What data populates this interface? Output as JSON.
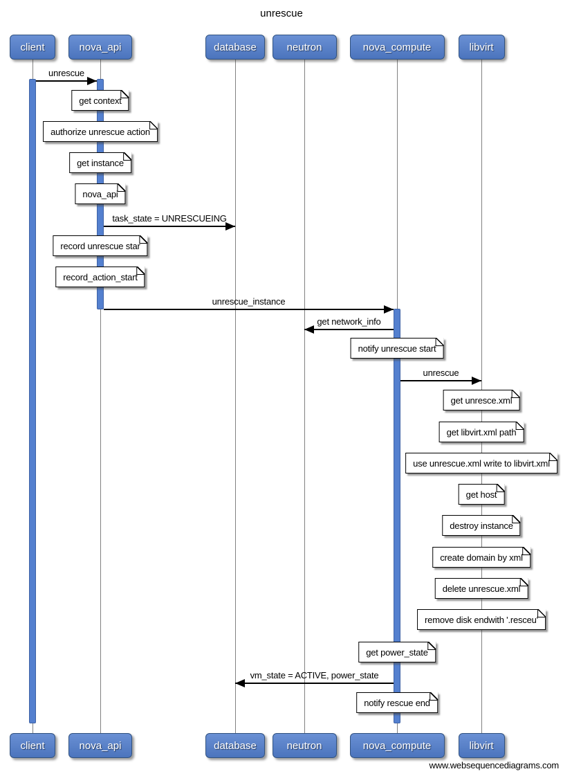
{
  "title": "unrescue",
  "watermark": "www.websequencediagrams.com",
  "actors": [
    {
      "id": "client",
      "label": "client"
    },
    {
      "id": "nova_api",
      "label": "nova_api"
    },
    {
      "id": "database",
      "label": "database"
    },
    {
      "id": "neutron",
      "label": "neutron"
    },
    {
      "id": "nova_compute",
      "label": "nova_compute"
    },
    {
      "id": "libvirt",
      "label": "libvirt"
    }
  ],
  "messages": [
    {
      "from": "client",
      "to": "nova_api",
      "label": "unrescue"
    },
    {
      "from": "nova_api",
      "to": "database",
      "label": "task_state = UNRESCUEING"
    },
    {
      "from": "nova_api",
      "to": "nova_compute",
      "label": "unrescue_instance"
    },
    {
      "from": "nova_compute",
      "to": "neutron",
      "label": "get network_info"
    },
    {
      "from": "nova_compute",
      "to": "libvirt",
      "label": "unrescue"
    },
    {
      "from": "nova_compute",
      "to": "database",
      "label": "vm_state = ACTIVE, power_state"
    }
  ],
  "notes": [
    {
      "over": "nova_api",
      "label": "get context"
    },
    {
      "over": "nova_api",
      "label": "authorize unrescue action"
    },
    {
      "over": "nova_api",
      "label": "get instance"
    },
    {
      "over": "nova_api",
      "label": "nova_api"
    },
    {
      "over": "nova_api",
      "label": "record unrescue star"
    },
    {
      "over": "nova_api",
      "label": "record_action_start"
    },
    {
      "over": "nova_compute",
      "label": "notify unrescue start"
    },
    {
      "over": "libvirt",
      "label": "get unresce.xml"
    },
    {
      "over": "libvirt",
      "label": "get libvirt.xml path"
    },
    {
      "over": "libvirt",
      "label": "use unrescue.xml write to libvirt.xml"
    },
    {
      "over": "libvirt",
      "label": "get host"
    },
    {
      "over": "libvirt",
      "label": "destroy instance"
    },
    {
      "over": "libvirt",
      "label": "create domain by xml"
    },
    {
      "over": "libvirt",
      "label": "delete unrescue.xml"
    },
    {
      "over": "libvirt",
      "label": "remove disk endwith '.resceu'"
    },
    {
      "over": "nova_compute",
      "label": "get power_state"
    },
    {
      "over": "nova_compute",
      "label": "notify rescue end"
    }
  ],
  "colors": {
    "actor_fill_top": "#6a90d4",
    "actor_fill_bottom": "#4b74bd",
    "actor_border": "#30517f",
    "activation_fill": "#5480cf",
    "lifeline": "#808080",
    "arrow": "#000000",
    "note_bg": "#ffffff",
    "note_border": "#000000"
  }
}
